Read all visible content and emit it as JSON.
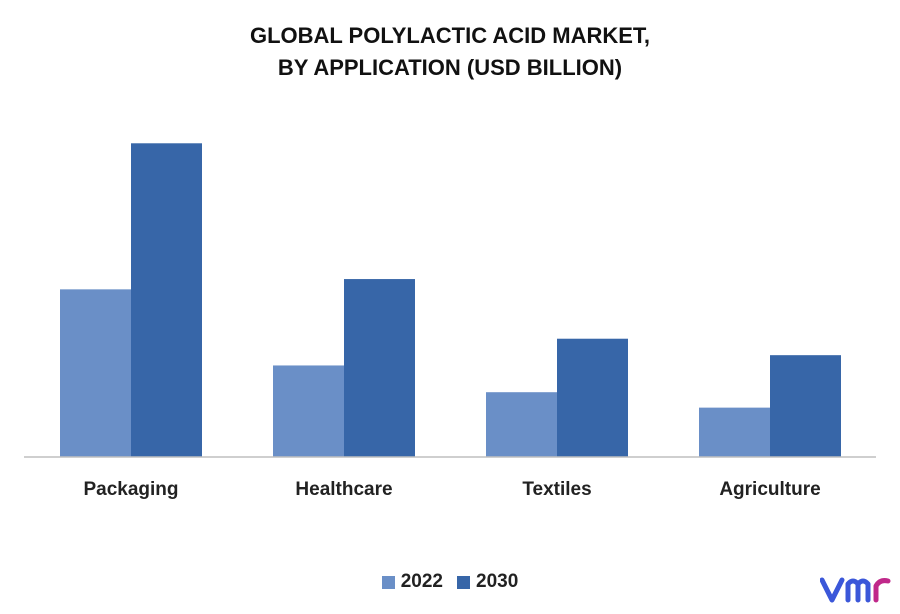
{
  "title_line1": "GLOBAL POLYLACTIC ACID MARKET,",
  "title_line2": "BY APPLICATION (USD BILLION)",
  "logo_text": "vmr",
  "chart_data": {
    "type": "bar",
    "categories": [
      "Packaging",
      "Healthcare",
      "Textiles",
      "Agriculture"
    ],
    "series": [
      {
        "name": "2022",
        "color": "#6a8fc7",
        "values": [
          1.63,
          0.89,
          0.63,
          0.48
        ]
      },
      {
        "name": "2030",
        "color": "#3766a8",
        "values": [
          3.05,
          1.73,
          1.15,
          0.99
        ]
      }
    ],
    "ylim": [
      0,
      3.5
    ],
    "grid": false,
    "legend_position": "bottom-center",
    "xlabel": "",
    "ylabel": ""
  }
}
